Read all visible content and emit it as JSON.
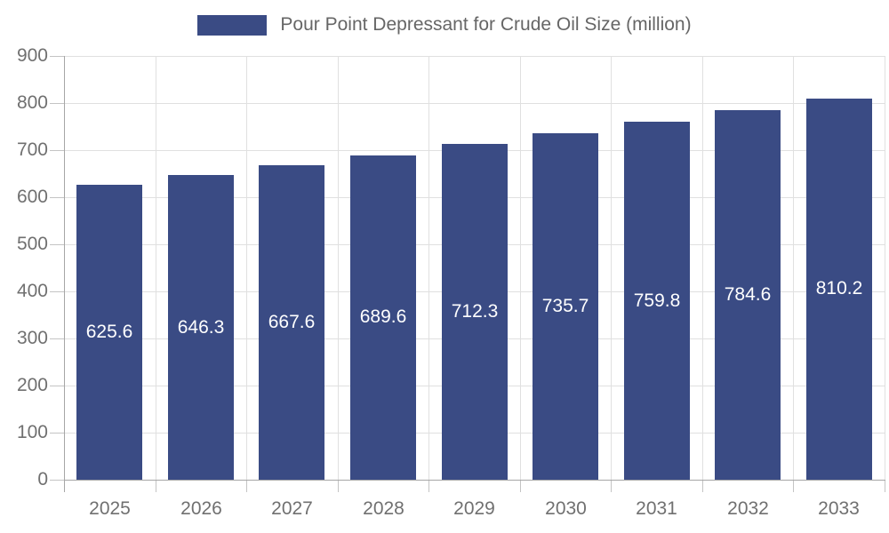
{
  "chart_data": {
    "type": "bar",
    "title": "Pour Point Depressant for Crude Oil Size (million)",
    "legend": [
      "Pour Point Depressant for Crude Oil Size (million)"
    ],
    "legend_position": "top",
    "categories": [
      "2025",
      "2026",
      "2027",
      "2028",
      "2029",
      "2030",
      "2031",
      "2032",
      "2033"
    ],
    "values": [
      625.6,
      646.3,
      667.6,
      689.6,
      712.3,
      735.7,
      759.8,
      784.6,
      810.2
    ],
    "xlabel": "",
    "ylabel": "",
    "ylim": [
      0,
      900
    ],
    "ytick_step": 100,
    "ytick_labels": [
      "0",
      "100",
      "200",
      "300",
      "400",
      "500",
      "600",
      "700",
      "800",
      "900"
    ],
    "grid": true,
    "value_labels": "inside-center",
    "colors": {
      "bar": "#3A4B84",
      "axis": "#A6A6A6",
      "grid": "#E0E0E0",
      "tick": "#C4C4C4",
      "axis_label_text": "#707070",
      "legend_text": "#666666",
      "bar_label_text": "#FFFFFF",
      "background": "#FFFFFF"
    }
  }
}
